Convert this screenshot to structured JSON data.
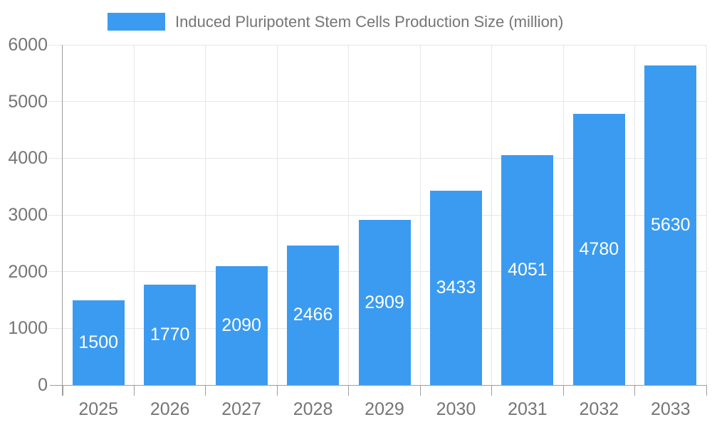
{
  "chart_data": {
    "type": "bar",
    "categories": [
      "2025",
      "2026",
      "2027",
      "2028",
      "2029",
      "2030",
      "2031",
      "2032",
      "2033"
    ],
    "series": [
      {
        "name": "Induced Pluripotent Stem Cells Production Size (million)",
        "values": [
          1500,
          1770,
          2090,
          2466,
          2909,
          3433,
          4051,
          4780,
          5630
        ]
      }
    ],
    "legend": {
      "label": "Induced Pluripotent Stem Cells Production Size (million)",
      "position": "top"
    },
    "ylim": [
      0,
      6000
    ],
    "yticks": [
      0,
      1000,
      2000,
      3000,
      4000,
      5000,
      6000
    ],
    "grid": true,
    "bar_value_labels": true,
    "legend_entries": [
      "Induced Pluripotent Stem Cells Production Size (million)"
    ]
  },
  "colors": {
    "bar": "#3b9bf0",
    "axis": "#9e9e9e",
    "grid": "#e6e6e6",
    "tick_text": "#757575",
    "legend_text": "#757575",
    "value_label_text": "#ffffff",
    "background": "#ffffff"
  }
}
